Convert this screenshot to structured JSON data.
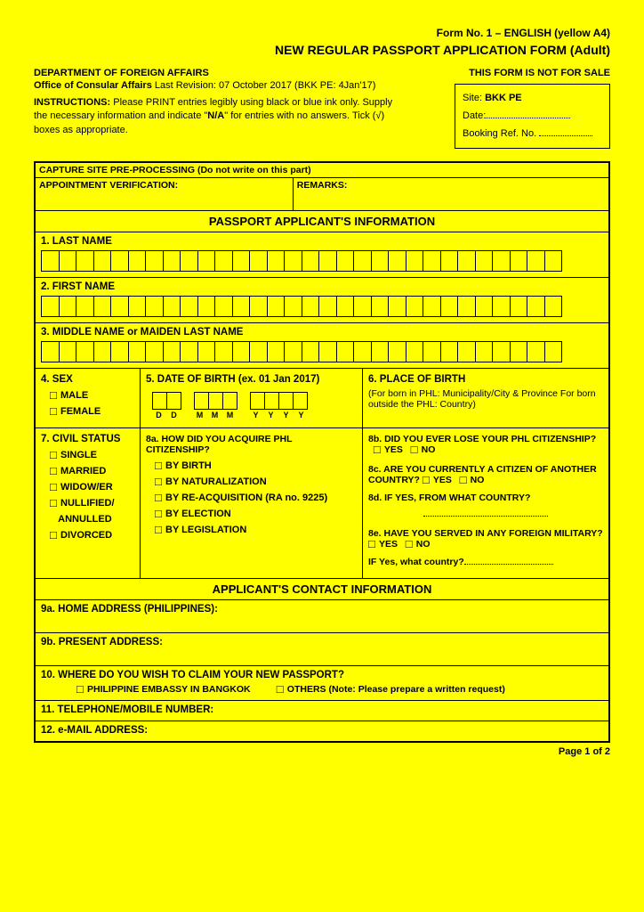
{
  "header": {
    "form_no": "Form No. 1 – ENGLISH",
    "form_no_note": "(yellow A4)",
    "title": "NEW REGULAR PASSPORT APPLICATION FORM (Adult)",
    "department": "DEPARTMENT OF FOREIGN AFFAIRS",
    "office_bold": "Office of Consular Affairs",
    "office_rest": " Last Revision: 07 October 2017 (BKK PE: 4Jan'17)",
    "not_for_sale": "THIS FORM IS NOT FOR SALE",
    "instructions_bold": "INSTRUCTIONS:",
    "instructions_text": " Please PRINT entries legibly using black or blue ink only. Supply the necessary information and indicate \"",
    "instructions_na": "N/A",
    "instructions_text2": "\" for entries with no answers. Tick (√) boxes as appropriate.",
    "site_label": "Site: ",
    "site_value": "BKK PE",
    "date_label": "Date:",
    "booking_label": "Booking Ref. No."
  },
  "preproc": {
    "capture": "CAPTURE SITE PRE-PROCESSING (Do not write on this part)",
    "appointment": "APPOINTMENT VERIFICATION:",
    "remarks": "REMARKS:"
  },
  "section1": {
    "title": "PASSPORT APPLICANT'S INFORMATION",
    "last_name": "1. LAST NAME",
    "first_name": "2. FIRST NAME",
    "middle_name": "3. MIDDLE NAME or MAIDEN LAST NAME",
    "sex": "4. SEX",
    "male": "MALE",
    "female": "FEMALE",
    "dob": "5. DATE OF BIRTH (ex. 01 Jan 2017)",
    "pob": "6. PLACE OF BIRTH",
    "pob_sub": "(For born in PHL: Municipality/City & Province For born outside the PHL: Country)",
    "civil": "7. CIVIL STATUS",
    "civil_opts": [
      "SINGLE",
      "MARRIED",
      "WIDOW/ER",
      "NULLIFIED/",
      "ANNULLED",
      "DIVORCED"
    ],
    "q8a": "8a. HOW DID YOU ACQUIRE PHL CITIZENSHIP?",
    "q8a_opts": [
      "BY BIRTH",
      "BY NATURALIZATION",
      "BY RE-ACQUISITION (RA no. 9225)",
      "BY ELECTION",
      "BY LEGISLATION"
    ],
    "q8b": "8b. DID YOU EVER LOSE YOUR PHL CITIZENSHIP?",
    "yes": "YES",
    "no": "NO",
    "q8c": "8c. ARE YOU CURRENTLY A CITIZEN OF ANOTHER COUNTRY?",
    "q8d": "8d. IF YES, FROM WHAT COUNTRY?",
    "q8e": "8e. HAVE YOU SERVED IN ANY FOREIGN MILITARY?",
    "q8e_if": "IF Yes, what country?"
  },
  "section2": {
    "title": "APPLICANT'S CONTACT INFORMATION",
    "q9a": "9a. HOME ADDRESS (PHILIPPINES):",
    "q9b": "9b. PRESENT ADDRESS:",
    "q10": "10. WHERE DO YOU WISH TO CLAIM YOUR NEW PASSPORT?",
    "q10_opt1": "PHILIPPINE EMBASSY IN BANGKOK",
    "q10_opt2": "OTHERS (Note: Please prepare a written request)",
    "q11": "11. TELEPHONE/MOBILE NUMBER:",
    "q12": "12. e-MAIL ADDRESS:"
  },
  "footer": {
    "page": "Page 1 of 2"
  },
  "layout": {
    "char_box_count": 30,
    "dob_groups": [
      {
        "boxes": 2,
        "labels": [
          "D",
          "D"
        ]
      },
      {
        "boxes": 3,
        "labels": [
          "M",
          "M",
          "M"
        ]
      },
      {
        "boxes": 4,
        "labels": [
          "Y",
          "Y",
          "Y",
          "Y"
        ]
      }
    ]
  }
}
